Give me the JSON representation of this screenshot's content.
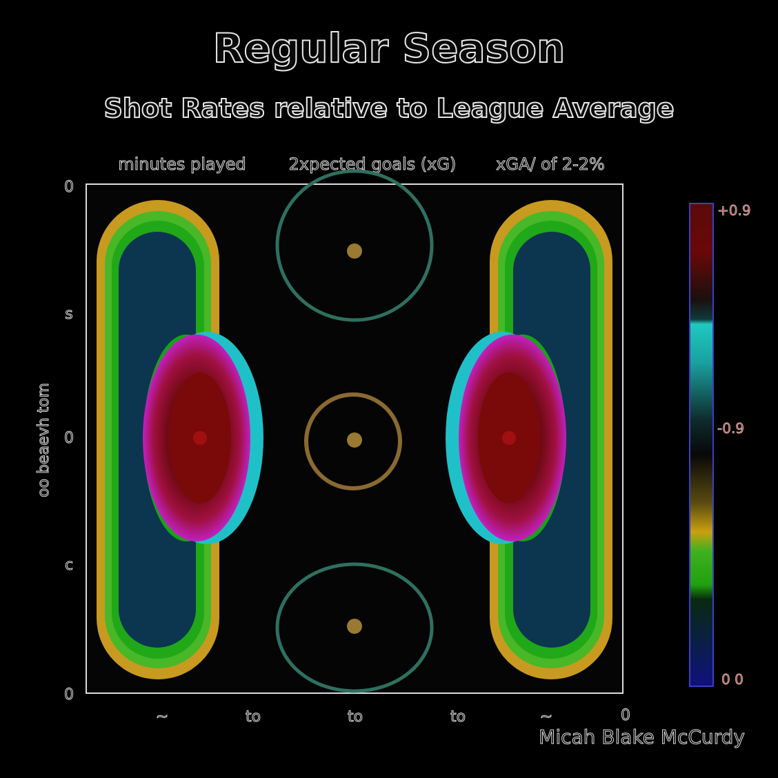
{
  "header": {
    "title": "Regular Season",
    "subtitle": "Shot Rates relative to League Average"
  },
  "stats": [
    "minutes played",
    "2xpected goals (xG)",
    "xGA/ of 2-2%"
  ],
  "axes": {
    "y_label": "oo beaevh tom",
    "y_ticks": [
      "0",
      "s",
      "0",
      "c",
      "0"
    ],
    "x_ticks": [
      "~",
      "to",
      "to",
      "to",
      "~",
      "0"
    ]
  },
  "colorbar": {
    "top": "+0.9",
    "middle": "-0.9",
    "bottom": "0 0"
  },
  "credit": "Micah Blake McCurdy"
}
